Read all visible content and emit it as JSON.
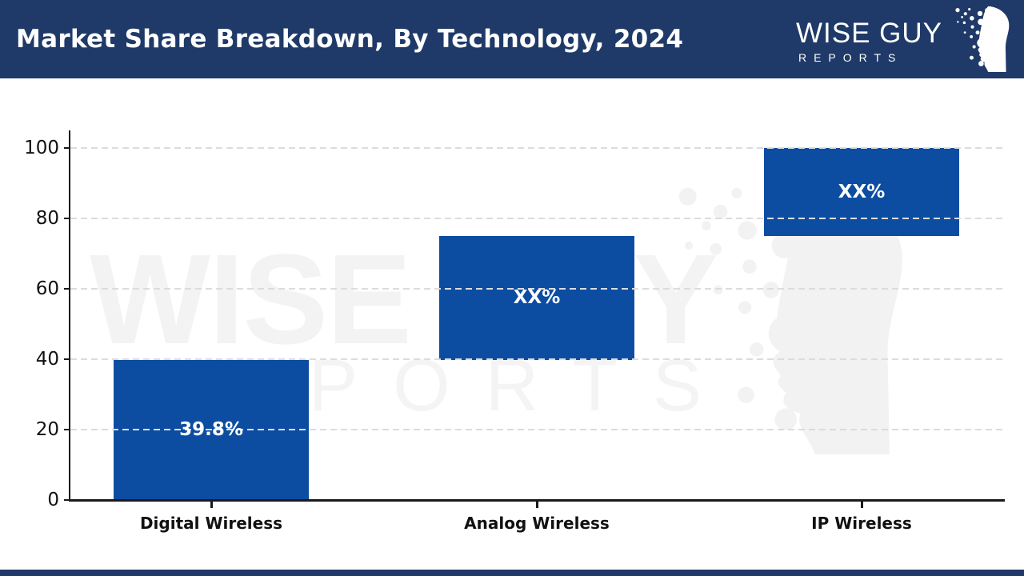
{
  "header": {
    "title": "Market Share Breakdown, By Technology, 2024",
    "logo": {
      "wordmark": "WISE GUY",
      "subtext": "REPORTS"
    }
  },
  "watermark": {
    "wordmark": "WISE GUY",
    "subtext": "REPORTS"
  },
  "chart_data": {
    "type": "bar",
    "subtype": "floating-segment-waterfall",
    "title": "Market Share Breakdown, By Technology, 2024",
    "xlabel": "",
    "ylabel": "",
    "categories": [
      "Digital Wireless",
      "Analog Wireless",
      "IP Wireless"
    ],
    "segments": [
      {
        "category": "Digital Wireless",
        "start": 0,
        "end": 39.8,
        "label": "39.8%"
      },
      {
        "category": "Analog Wireless",
        "start": 39.8,
        "end": 75,
        "label": "XX%"
      },
      {
        "category": "IP Wireless",
        "start": 75,
        "end": 100,
        "label": "XX%"
      }
    ],
    "yticks": [
      0,
      20,
      40,
      60,
      80,
      100
    ],
    "ylim": [
      0,
      105
    ],
    "grid": true,
    "grid_style": "dashed",
    "legend": false,
    "colors": {
      "bar": "#0c4da2",
      "grid": "#dcdcdc",
      "axis": "#1a1a1a",
      "bar_label_text": "#ffffff",
      "header_bg": "#1f3a68",
      "watermark": "#f2f2f2"
    }
  }
}
